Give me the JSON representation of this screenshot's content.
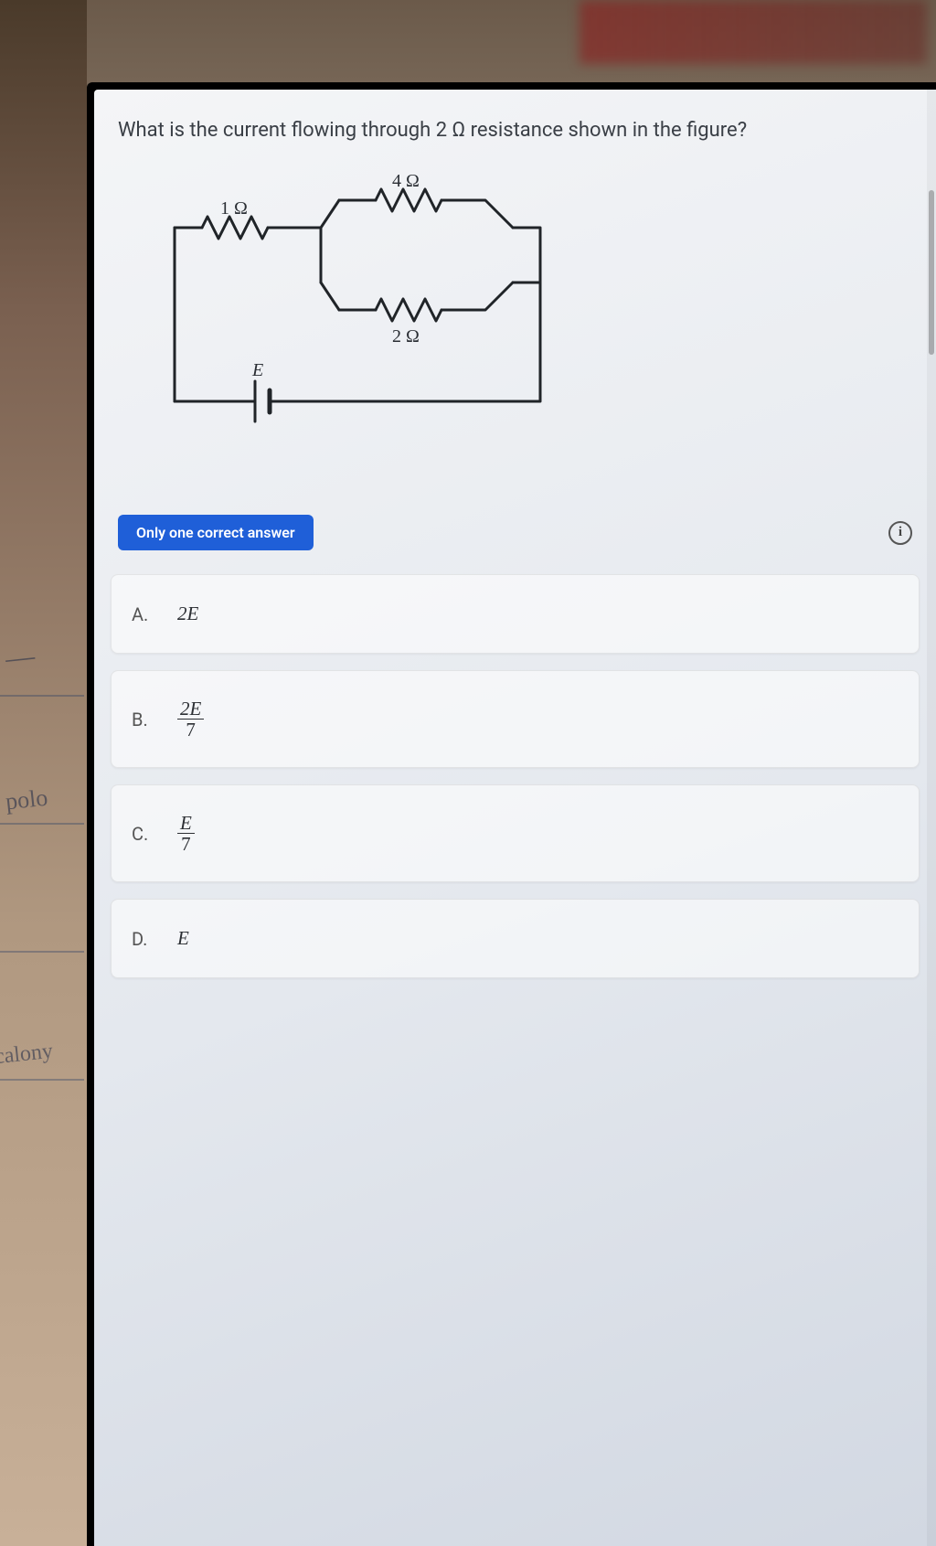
{
  "question": "What is the current flowing through 2 Ω resistance shown in the figure?",
  "circuit": {
    "r_series_label": "1 Ω",
    "r_top_label": "4 Ω",
    "r_bottom_label": "2 Ω",
    "emf_label": "E",
    "line_color": "#202428",
    "label_color": "#2a2e34",
    "label_fontsize": 20
  },
  "badge_text": "Only one correct answer",
  "info_glyph": "i",
  "options": [
    {
      "letter": "A.",
      "type": "plain",
      "value": "2E"
    },
    {
      "letter": "B.",
      "type": "frac",
      "num": "2E",
      "den": "7"
    },
    {
      "letter": "C.",
      "type": "frac",
      "num": "E",
      "den": "7"
    },
    {
      "letter": "D.",
      "type": "plain",
      "value": "E"
    }
  ],
  "colors": {
    "badge_bg": "#1f5fd8",
    "badge_fg": "#ffffff",
    "screen_bg_top": "#f4f5f7",
    "screen_bg_bot": "#d2d8e2",
    "option_bg": "rgba(255,255,255,0.55)"
  },
  "handwriting": {
    "line1": "—",
    "line2": "polo",
    "line3": "calony"
  }
}
